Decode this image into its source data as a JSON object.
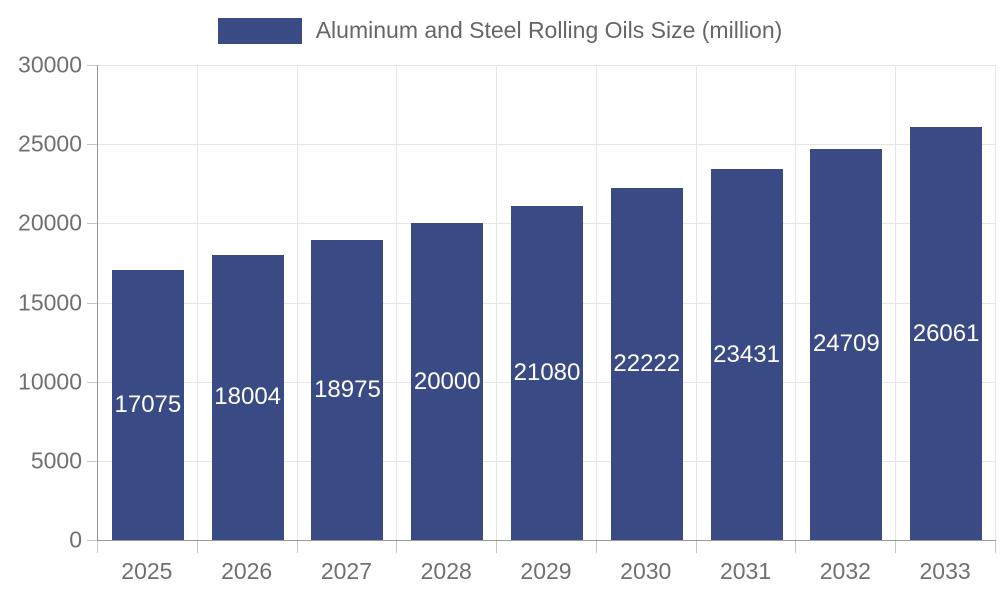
{
  "chart_data": {
    "type": "bar",
    "title": "",
    "legend": {
      "label": "Aluminum and Steel Rolling Oils Size (million)",
      "position": "top"
    },
    "categories": [
      "2025",
      "2026",
      "2027",
      "2028",
      "2029",
      "2030",
      "2031",
      "2032",
      "2033"
    ],
    "series": [
      {
        "name": "Aluminum and Steel Rolling Oils Size (million)",
        "values": [
          17075,
          18004,
          18975,
          20000,
          21080,
          22222,
          23431,
          24709,
          26061
        ]
      }
    ],
    "value_labels": [
      "17075",
      "18004",
      "18975",
      "20000",
      "21080",
      "22222",
      "23431",
      "24709",
      "26061"
    ],
    "xlabel": "",
    "ylabel": "",
    "ylim": [
      0,
      30000
    ],
    "ytick_step": 5000,
    "ytick_labels": [
      "0",
      "5000",
      "10000",
      "15000",
      "20000",
      "25000",
      "30000"
    ],
    "grid": true,
    "colors": {
      "bar": "#394a85",
      "grid": "#e6e6e6",
      "axis": "#999999",
      "tick": "#c6c6c6",
      "axis_label": "#707070",
      "value_label": "#ffffff",
      "legend_text": "#666666",
      "background": "#ffffff"
    }
  }
}
